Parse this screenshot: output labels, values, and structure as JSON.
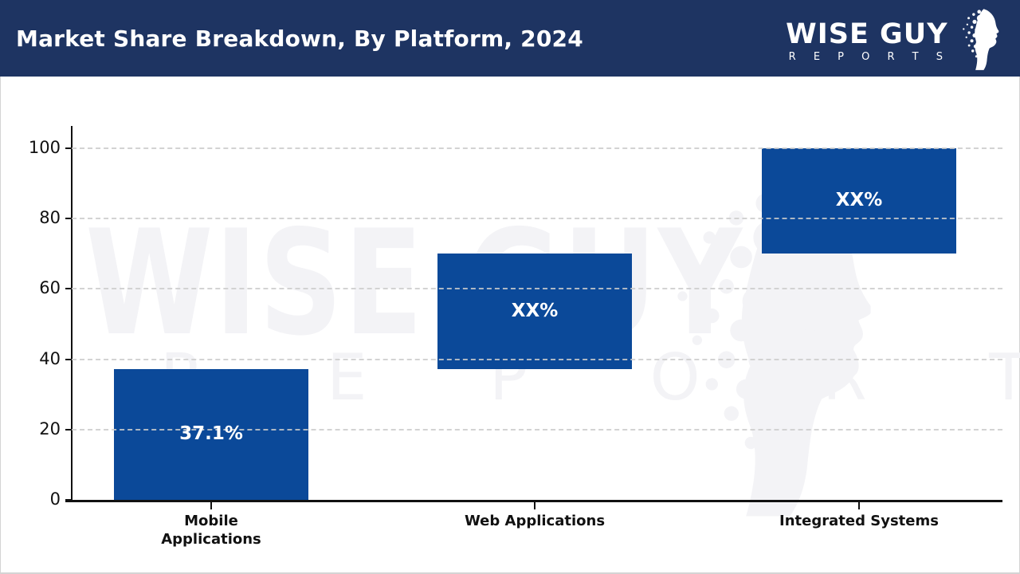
{
  "header": {
    "title": "Market Share Breakdown, By Platform, 2024",
    "logo": {
      "line1": "WISE GUY",
      "line2": "R E P O R T S"
    }
  },
  "watermark": {
    "line1": "WISE GUY",
    "line2": "R E P O R T S"
  },
  "colors": {
    "header_bg": "#1e3462",
    "bar": "#0b4999",
    "grid": "#cbcbcb",
    "axis": "#111111",
    "bar_label_text": "#ffffff",
    "watermark": "#f3f3f6"
  },
  "chart_data": {
    "type": "bar",
    "subtype": "floating-waterfall",
    "title": "Market Share Breakdown, By Platform, 2024",
    "categories": [
      "Mobile\nApplications",
      "Web Applications",
      "Integrated Systems"
    ],
    "bars": [
      {
        "category": "Mobile\nApplications",
        "start": 0,
        "end": 37.1,
        "label": "37.1%"
      },
      {
        "category": "Web Applications",
        "start": 37.1,
        "end": 70,
        "label": "XX%"
      },
      {
        "category": "Integrated Systems",
        "start": 70,
        "end": 100,
        "label": "XX%"
      }
    ],
    "yticks": [
      0,
      20,
      40,
      60,
      80,
      100
    ],
    "ylim": [
      0,
      106
    ],
    "xlabel": "",
    "ylabel": "",
    "grid": "dashed-horizontal",
    "legend": null
  }
}
